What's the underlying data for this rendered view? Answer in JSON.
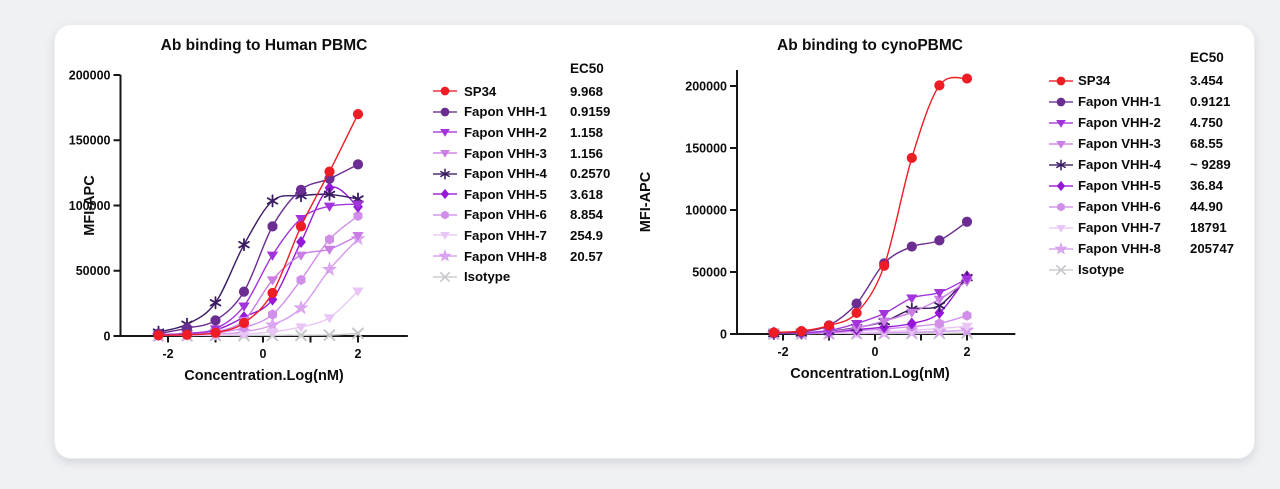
{
  "page": {
    "background_color": "#f0f1f4",
    "card_color": "#ffffff"
  },
  "chart_data": [
    {
      "type": "scatter",
      "title": "Ab binding to Human PBMC",
      "xlabel": "Concentration.Log(nM)",
      "ylabel": "MFI-APC",
      "legend_header": "EC50",
      "legend_position": "right",
      "grid": false,
      "x": [
        -2.2,
        -1.6,
        -1.0,
        -0.4,
        0.2,
        0.8,
        1.4,
        2.0
      ],
      "xlim": [
        -3.0,
        3.05
      ],
      "ylim": [
        0,
        200000
      ],
      "yticks": [
        0,
        50000,
        100000,
        150000,
        200000
      ],
      "ytick_labels": [
        "0",
        "50000",
        "100000",
        "150000",
        "200000"
      ],
      "xticks_major": [
        -2,
        0,
        2
      ],
      "xtick_labels": [
        "-2",
        "0",
        "2"
      ],
      "xticks_minor": [
        -1,
        1
      ],
      "series": [
        {
          "name": "SP34",
          "ec50": "9.968",
          "marker": "circle",
          "color": "#EE1C25",
          "values": [
            600,
            900,
            2500,
            10000,
            33000,
            84000,
            126000,
            170000
          ]
        },
        {
          "name": "Fapon VHH-1",
          "ec50": "0.9159",
          "marker": "circle",
          "color": "#6B2D92",
          "values": [
            1800,
            6000,
            12000,
            34000,
            84000,
            112000,
            120500,
            131500
          ]
        },
        {
          "name": "Fapon VHH-2",
          "ec50": "1.158",
          "marker": "triangle-down",
          "color": "#A333DB",
          "values": [
            900,
            2000,
            5500,
            23000,
            62000,
            90000,
            99500,
            101000
          ]
        },
        {
          "name": "Fapon VHH-3",
          "ec50": "1.156",
          "marker": "triangle-down",
          "color": "#C97DE5",
          "values": [
            600,
            1300,
            3200,
            12000,
            43000,
            62000,
            66500,
            77000
          ]
        },
        {
          "name": "Fapon VHH-4",
          "ec50": "0.2570",
          "marker": "asterisk",
          "color": "#3A1B61",
          "values": [
            3000,
            9000,
            25500,
            70000,
            103500,
            107500,
            108500,
            105000
          ]
        },
        {
          "name": "Fapon VHH-5",
          "ec50": "3.618",
          "marker": "diamond",
          "color": "#9517D8",
          "values": [
            900,
            1900,
            4500,
            14500,
            28000,
            72000,
            113500,
            99000
          ]
        },
        {
          "name": "Fapon VHH-6",
          "ec50": "8.854",
          "marker": "hexagon",
          "color": "#D18FE9",
          "values": [
            500,
            900,
            2200,
            6500,
            16500,
            43000,
            74000,
            92000
          ]
        },
        {
          "name": "Fapon VHH-7",
          "ec50": "254.9",
          "marker": "triangle-down",
          "color": "#E9C6F5",
          "values": [
            300,
            500,
            800,
            1600,
            3200,
            7000,
            14000,
            34500
          ]
        },
        {
          "name": "Fapon VHH-8",
          "ec50": "20.57",
          "marker": "star",
          "color": "#D79CEF",
          "values": [
            400,
            700,
            1300,
            3200,
            8500,
            21500,
            51000,
            74500
          ]
        },
        {
          "name": "Isotype",
          "ec50": "",
          "marker": "x",
          "color": "#C7C8CC",
          "values": [
            300,
            300,
            350,
            400,
            450,
            500,
            700,
            2000
          ]
        }
      ]
    },
    {
      "type": "scatter",
      "title": "Ab binding to cynoPBMC",
      "xlabel": "Concentration.Log(nM)",
      "ylabel": "MFI-APC",
      "legend_header": "EC50",
      "legend_position": "right",
      "grid": false,
      "x": [
        -2.2,
        -1.6,
        -1.0,
        -0.4,
        0.2,
        0.8,
        1.4,
        2.0
      ],
      "xlim": [
        -3.0,
        3.05
      ],
      "ylim": [
        0,
        200000
      ],
      "yticks": [
        0,
        50000,
        100000,
        150000,
        200000
      ],
      "ytick_labels": [
        "0",
        "50000",
        "100000",
        "150000",
        "200000"
      ],
      "xticks_major": [
        -2,
        0,
        2
      ],
      "xtick_labels": [
        "-2",
        "0",
        "2"
      ],
      "xticks_minor": [
        -1,
        1
      ],
      "series": [
        {
          "name": "SP34",
          "ec50": "3.454",
          "marker": "circle",
          "color": "#EE1C25",
          "values": [
            1200,
            2300,
            6800,
            17000,
            55000,
            142000,
            200500,
            206000
          ]
        },
        {
          "name": "Fapon VHH-1",
          "ec50": "0.9121",
          "marker": "circle",
          "color": "#6B2D92",
          "values": [
            800,
            1800,
            7000,
            24500,
            57000,
            70500,
            75500,
            90500
          ]
        },
        {
          "name": "Fapon VHH-2",
          "ec50": "4.750",
          "marker": "triangle-down",
          "color": "#A333DB",
          "values": [
            500,
            1000,
            2800,
            8500,
            16500,
            29000,
            33500,
            44500
          ]
        },
        {
          "name": "Fapon VHH-3",
          "ec50": "68.55",
          "marker": "triangle-down",
          "color": "#C97DE5",
          "values": [
            400,
            700,
            1800,
            4800,
            10500,
            17500,
            28000,
            42500
          ]
        },
        {
          "name": "Fapon VHH-4",
          "ec50": "~ 9289",
          "marker": "asterisk",
          "color": "#3A1B61",
          "values": [
            400,
            800,
            2000,
            5200,
            10000,
            20000,
            23000,
            45500
          ]
        },
        {
          "name": "Fapon VHH-5",
          "ec50": "36.84",
          "marker": "diamond",
          "color": "#9517D8",
          "values": [
            300,
            600,
            1500,
            3600,
            5500,
            8500,
            17000,
            46500
          ]
        },
        {
          "name": "Fapon VHH-6",
          "ec50": "44.90",
          "marker": "hexagon",
          "color": "#D18FE9",
          "values": [
            300,
            500,
            1100,
            2600,
            4000,
            6000,
            8500,
            14800
          ]
        },
        {
          "name": "Fapon VHH-7",
          "ec50": "18791",
          "marker": "triangle-down",
          "color": "#E9C6F5",
          "values": [
            200,
            350,
            550,
            1000,
            1800,
            3000,
            4500,
            6200
          ]
        },
        {
          "name": "Fapon VHH-8",
          "ec50": "205747",
          "marker": "star",
          "color": "#D79CEF",
          "values": [
            200,
            300,
            450,
            650,
            950,
            1400,
            2000,
            3000
          ]
        },
        {
          "name": "Isotype",
          "ec50": "",
          "marker": "x",
          "color": "#C7C8CC",
          "values": [
            200,
            200,
            250,
            300,
            350,
            400,
            500,
            800
          ]
        }
      ]
    }
  ]
}
